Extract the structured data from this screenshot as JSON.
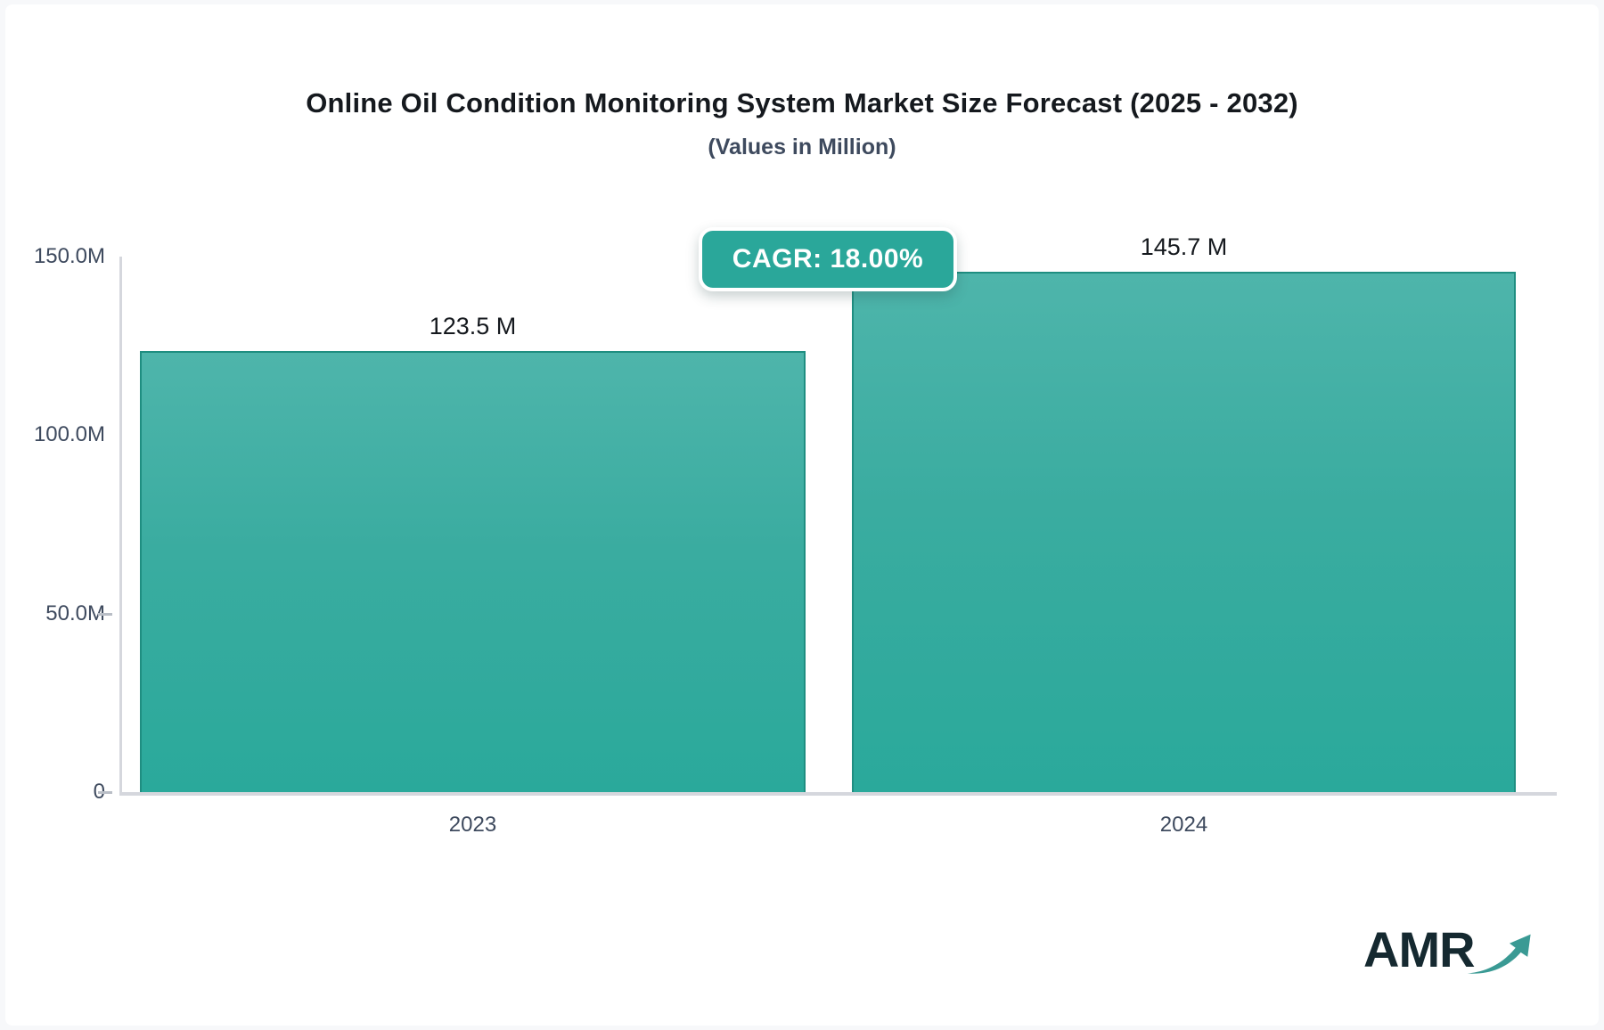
{
  "page": {
    "background": "#f7f8fa",
    "card_background": "#ffffff"
  },
  "header": {
    "title": "Online Oil Condition Monitoring System Market Size Forecast (2025 - 2032)",
    "subtitle": "(Values in Million)"
  },
  "cagr_badge": {
    "label": "CAGR: 18.00%",
    "background": "#2aa79a",
    "text_color": "#ffffff"
  },
  "chart_data": {
    "type": "bar",
    "title": "Online Oil Condition Monitoring System Market Size Forecast (2025 - 2032)",
    "subtitle": "(Values in Million)",
    "unit": "Million (M)",
    "categories": [
      "2023",
      "2024"
    ],
    "values": [
      123.5,
      145.7
    ],
    "value_labels": [
      "123.5 M",
      "145.7 M"
    ],
    "cagr_percent": "18.00%",
    "y_axis": {
      "min": 0,
      "max": 150,
      "tick_labels": [
        "150.0M",
        "100.0M",
        "50.0M",
        "0"
      ]
    },
    "legend": "none",
    "grid": "off",
    "bar_fill_top": "#4eb5ab",
    "bar_fill_bottom": "#2aa99b",
    "bar_border": "#1f8e81",
    "axis_color": "#d5d7dd",
    "label_color": "#3e4a5e"
  },
  "logo": {
    "text": "AMR",
    "text_color": "#152930",
    "arrow_color": "#3a9a94"
  }
}
